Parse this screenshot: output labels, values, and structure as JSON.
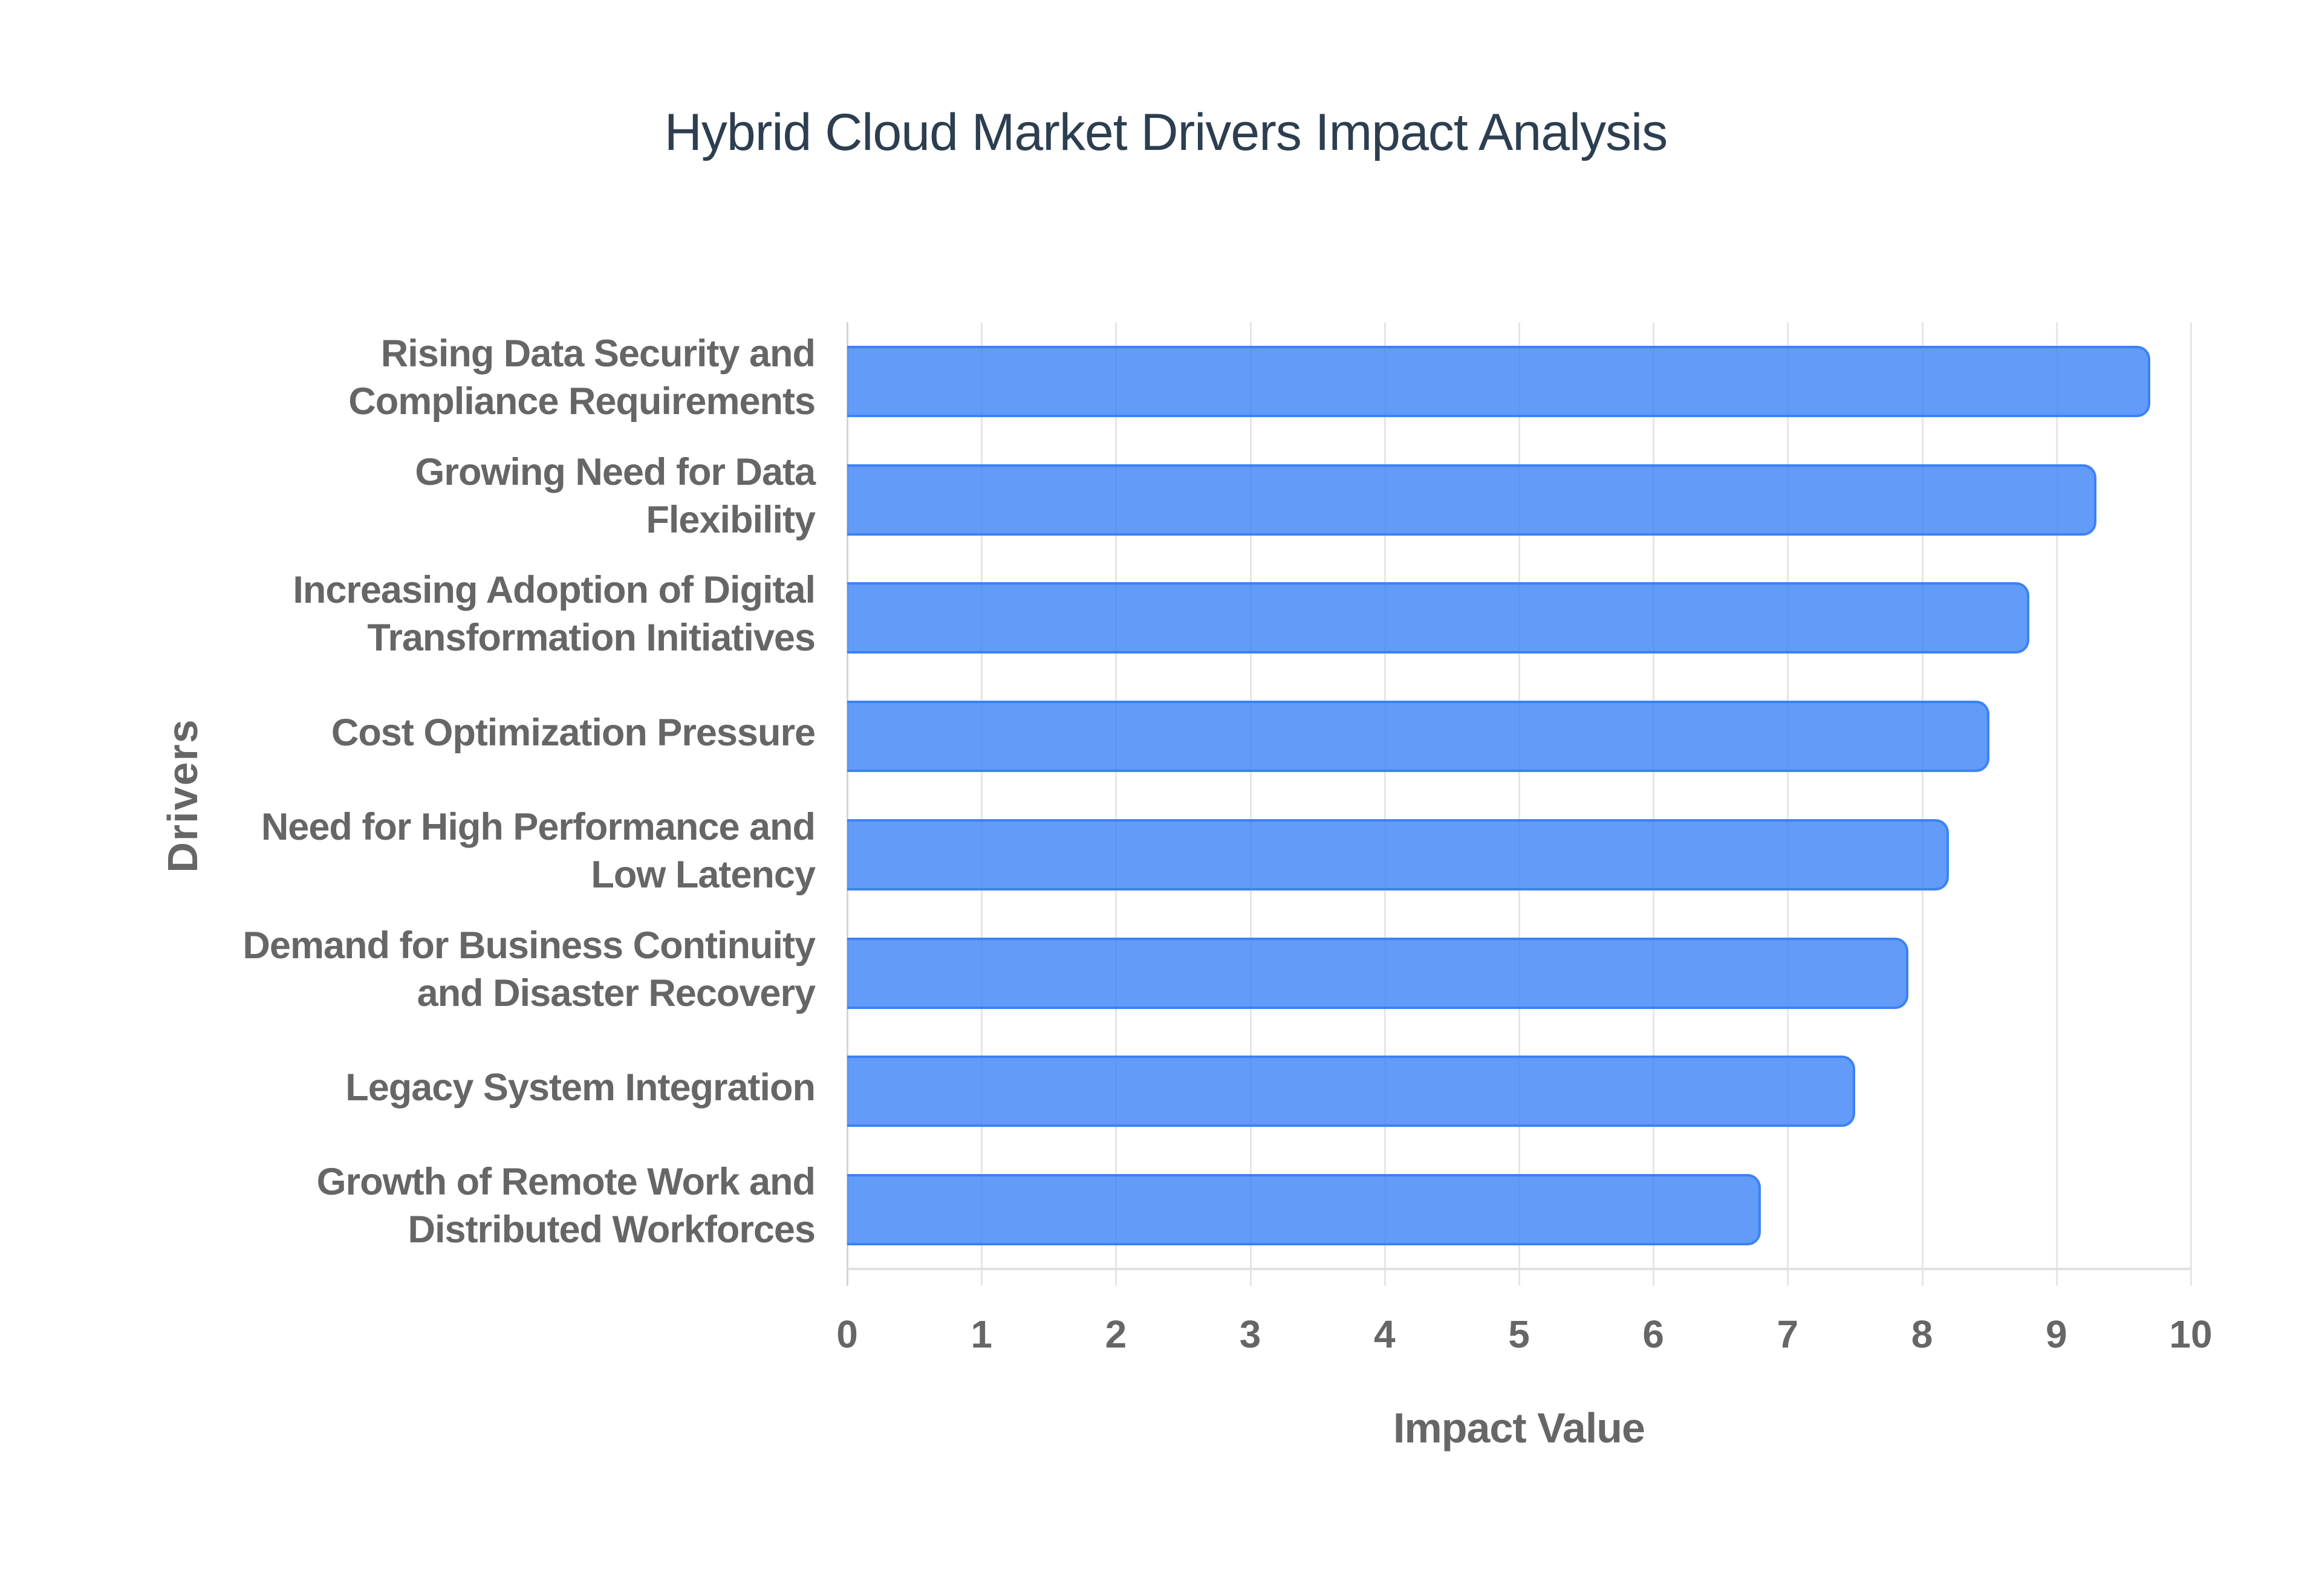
{
  "chart_data": {
    "type": "bar",
    "orientation": "horizontal",
    "title": "Hybrid Cloud Market Drivers Impact Analysis",
    "xlabel": "Impact Value",
    "ylabel": "Drivers",
    "xlim": [
      0,
      10
    ],
    "x_ticks": [
      "0",
      "1",
      "2",
      "3",
      "4",
      "5",
      "6",
      "7",
      "8",
      "9",
      "10"
    ],
    "grid": true,
    "legend": null,
    "bar_color": "#3b82f6",
    "categories": [
      "Rising Data Security and Compliance Requirements",
      "Growing Need for Data Flexibility",
      "Increasing Adoption of Digital Transformation Initiatives",
      "Cost Optimization Pressure",
      "Need for High Performance and Low Latency",
      "Demand for Business Continuity and Disaster Recovery",
      "Legacy System Integration",
      "Growth of Remote Work and Distributed Workforces"
    ],
    "category_lines": [
      [
        "Rising Data Security and",
        "Compliance Requirements"
      ],
      [
        "Growing Need for Data",
        "Flexibility"
      ],
      [
        "Increasing Adoption of Digital",
        "Transformation Initiatives"
      ],
      [
        "Cost Optimization Pressure"
      ],
      [
        "Need for High Performance and",
        "Low Latency"
      ],
      [
        "Demand for Business Continuity",
        "and Disaster Recovery"
      ],
      [
        "Legacy System Integration"
      ],
      [
        "Growth of Remote Work and",
        "Distributed Workforces"
      ]
    ],
    "values": [
      9.7,
      9.3,
      8.8,
      8.5,
      8.2,
      7.9,
      7.5,
      6.8
    ]
  }
}
